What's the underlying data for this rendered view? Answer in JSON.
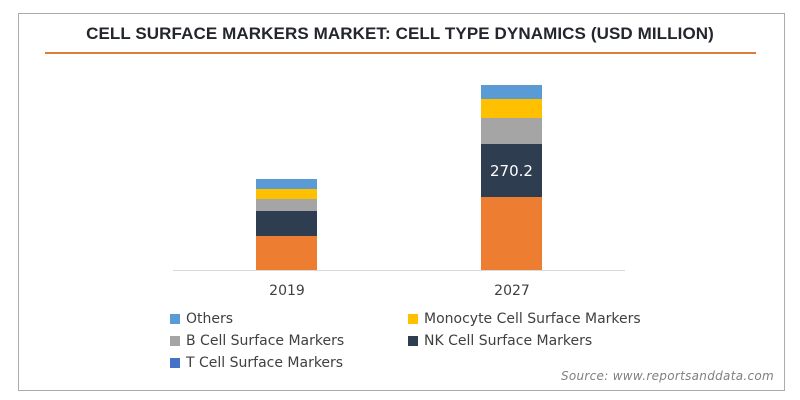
{
  "header": {
    "title": "CELL SURFACE MARKERS MARKET: CELL TYPE DYNAMICS (USD MILLION)"
  },
  "colors": {
    "title_text": "#23262c",
    "title_underline": "#e07b39",
    "axis_line": "#d9d9d9",
    "frame_border": "#ababab",
    "tick_label_text": "#404040",
    "legend_text": "#404040",
    "source_text": "#7f7f7f",
    "bar_label_text": "#ffffff"
  },
  "chart_data": {
    "type": "bar",
    "stacked": true,
    "title": "CELL SURFACE MARKERS MARKET: CELL TYPE DYNAMICS (USD MILLION)",
    "unit": "USD Million",
    "categories": [
      "2019",
      "2027"
    ],
    "series": [
      {
        "name": "T Cell Surface Markers",
        "bar_color": "#ed7d31",
        "legend_swatch_color": "#4472c4",
        "values": [
          173,
          371
        ]
      },
      {
        "name": "NK Cell Surface Markers",
        "bar_color": "#2e3d50",
        "legend_swatch_color": "#2e3d50",
        "values": [
          127,
          270.2
        ]
      },
      {
        "name": "B Cell Surface Markers",
        "bar_color": "#a5a5a5",
        "legend_swatch_color": "#a5a5a5",
        "values": [
          60,
          132
        ]
      },
      {
        "name": "Monocyte Cell Surface Markers",
        "bar_color": "#ffc000",
        "legend_swatch_color": "#ffc000",
        "values": [
          51,
          97
        ]
      },
      {
        "name": "Others",
        "bar_color": "#5b9bd5",
        "legend_swatch_color": "#5b9bd5",
        "values": [
          51,
          73
        ]
      }
    ],
    "stack_order": "bottom_to_top",
    "data_labels": [
      {
        "category": "2027",
        "series": "NK Cell Surface Markers",
        "text": "270.2"
      }
    ],
    "ylim": [
      0,
      1000
    ],
    "grid": false,
    "legend_position": "bottom-left"
  },
  "legend": {
    "columns": 2,
    "items": [
      "Others",
      "Monocyte Cell Surface Markers",
      "B Cell Surface Markers",
      "NK Cell Surface Markers",
      "T Cell Surface Markers"
    ]
  },
  "source": {
    "text": "Source: www.reportsanddata.com"
  }
}
